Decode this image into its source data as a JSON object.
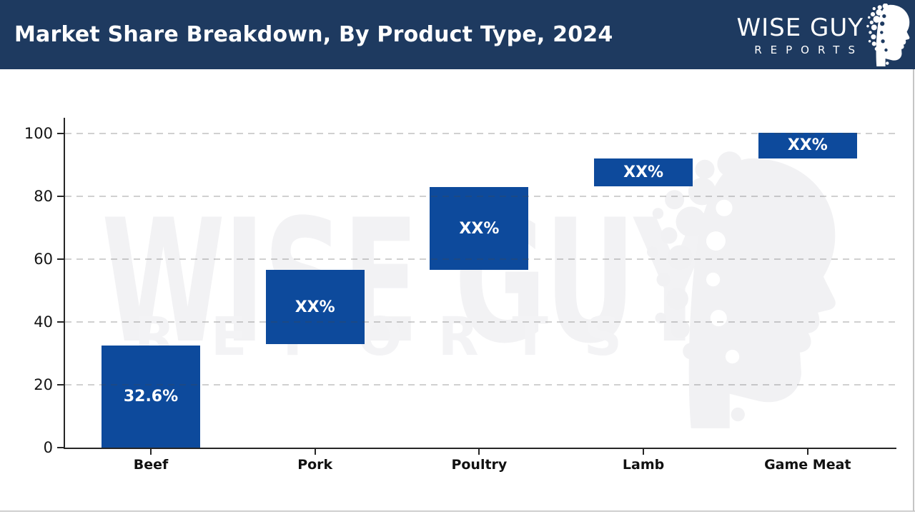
{
  "header": {
    "title": "Market Share Breakdown, By Product Type, 2024",
    "logo": {
      "line1": "WISE GUY",
      "line2": "REPORTS"
    }
  },
  "watermark": {
    "line1": "WISE GUY",
    "line2": "REPORTS"
  },
  "chart_data": {
    "type": "bar",
    "subtype": "floating-segment-waterfall",
    "title": "Market Share Breakdown, By Product Type, 2024",
    "categories": [
      "Beef",
      "Pork",
      "Poultry",
      "Lamb",
      "Game Meat"
    ],
    "bars": [
      {
        "category": "Beef",
        "start": 0,
        "end": 32.6,
        "label": "32.6%"
      },
      {
        "category": "Pork",
        "start": 33,
        "end": 56.5,
        "label": "XX%"
      },
      {
        "category": "Poultry",
        "start": 56.5,
        "end": 83,
        "label": "XX%"
      },
      {
        "category": "Lamb",
        "start": 83.2,
        "end": 92,
        "label": "XX%"
      },
      {
        "category": "Game Meat",
        "start": 92,
        "end": 100.3,
        "label": "XX%"
      }
    ],
    "y_ticks": [
      0,
      20,
      40,
      60,
      80,
      100
    ],
    "ylim": [
      0,
      105
    ],
    "xlabel": "",
    "ylabel": "",
    "grid": "dashed-horizontal",
    "legend": "none",
    "bar_color": "#0D4A9C",
    "bar_label_color": "#ffffff"
  },
  "colors": {
    "header_bg": "#1E3A60",
    "bar_blue": "#0D4A9C",
    "watermark_gray": "#f2f2f4",
    "axis_black": "#262626"
  }
}
